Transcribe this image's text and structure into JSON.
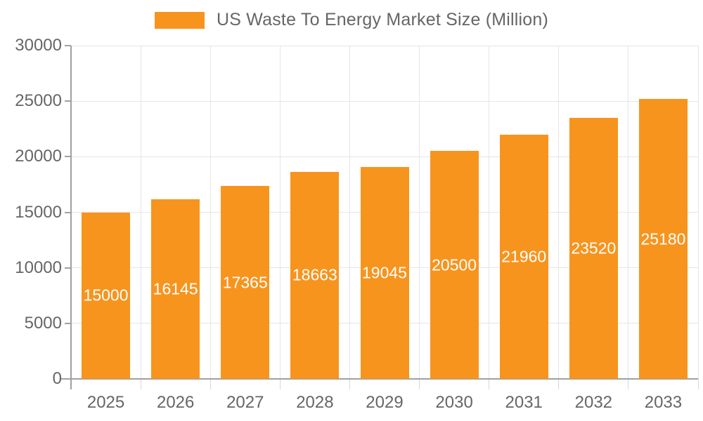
{
  "chart_data": {
    "type": "bar",
    "title": "US Waste To Energy Market Size (Million)",
    "legend": {
      "position": "top",
      "entries": [
        "US Waste To Energy Market Size (Million)"
      ]
    },
    "categories": [
      "2025",
      "2026",
      "2027",
      "2028",
      "2029",
      "2030",
      "2031",
      "2032",
      "2033"
    ],
    "series": [
      {
        "name": "US Waste To Energy Market Size (Million)",
        "values": [
          15000,
          16145,
          17365,
          18663,
          19045,
          20500,
          21960,
          23520,
          25180
        ]
      }
    ],
    "data_labels": [
      "15000",
      "16145",
      "17365",
      "18663",
      "19045",
      "20500",
      "21960",
      "23520",
      "25180"
    ],
    "xlabel": "",
    "ylabel": "",
    "ylim": [
      0,
      30000
    ],
    "yticks": [
      0,
      5000,
      10000,
      15000,
      20000,
      25000,
      30000
    ],
    "grid": true,
    "colors": {
      "bar": "#f7941e",
      "bar_label_text": "#ffffff",
      "axis_text": "#666666",
      "axis_line": "#a0a0a0",
      "gridline": "#e6e6e6",
      "boundary_tick": "#d6d6d6",
      "background": "#ffffff"
    }
  }
}
